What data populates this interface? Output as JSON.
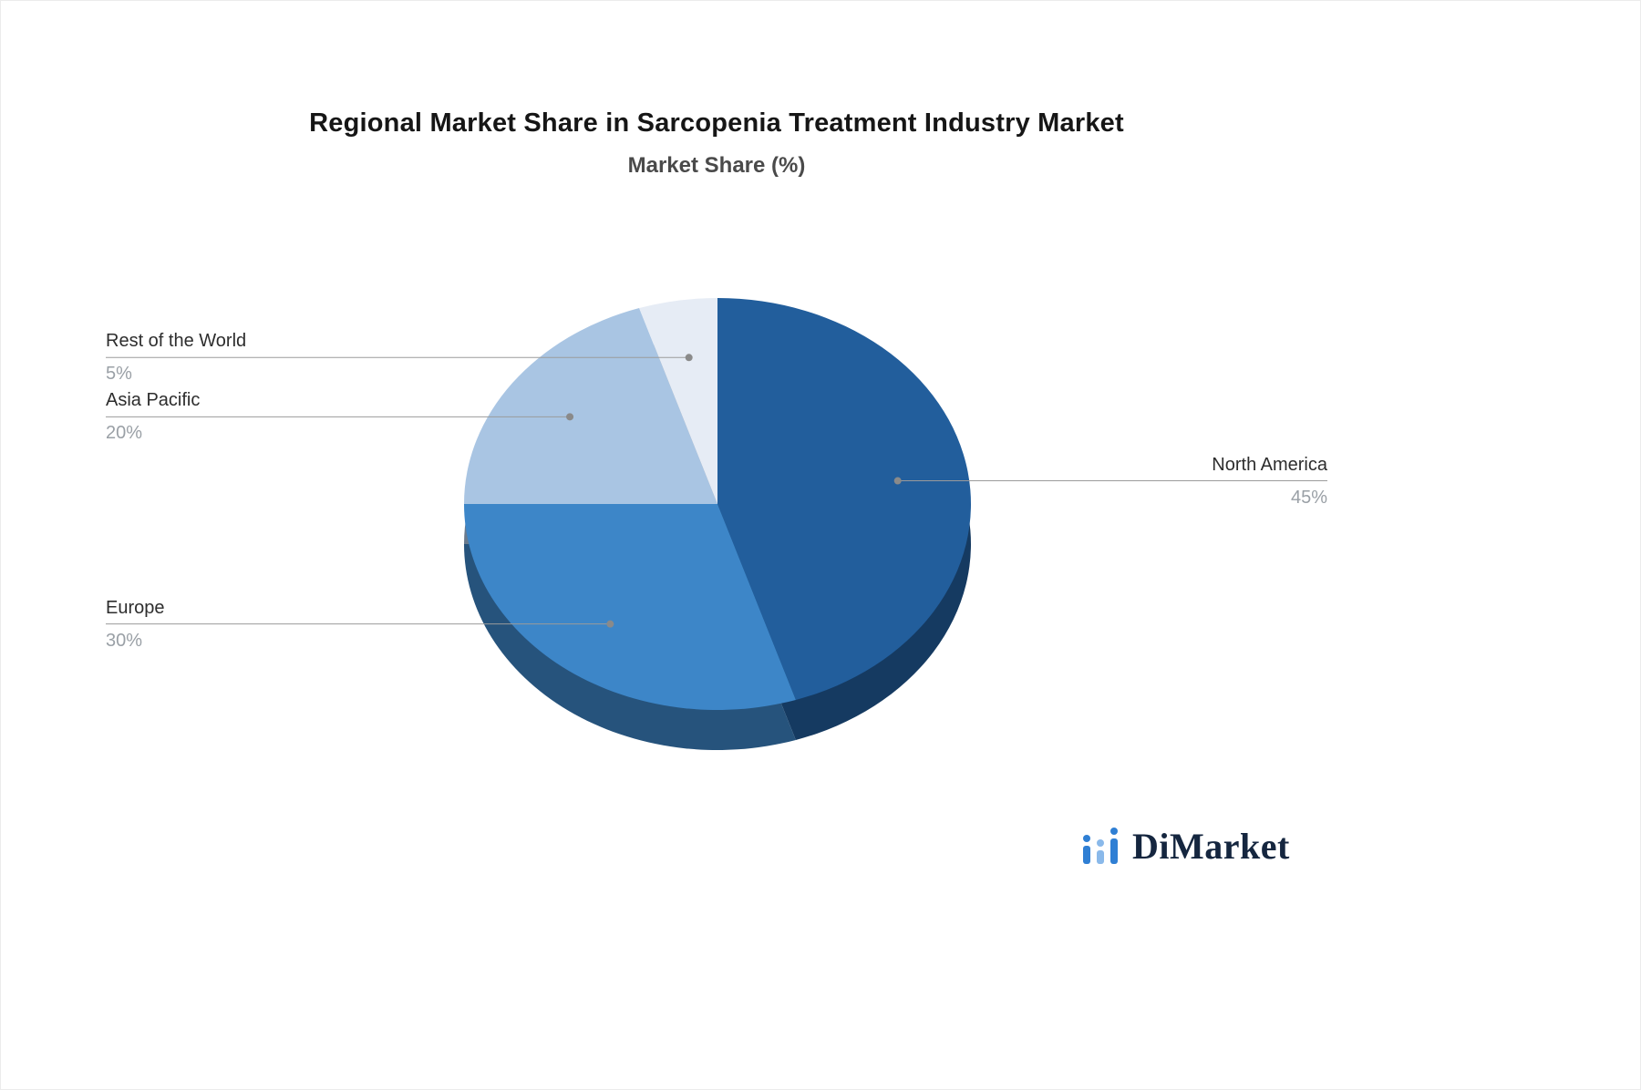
{
  "header": {
    "title": "Regional Market Share in Sarcopenia Treatment Industry Market",
    "subtitle": "Market Share (%)"
  },
  "brand": {
    "name": "DiMarket",
    "icon": "bar-chart-icon",
    "icon_color": "#2f7fd4",
    "icon_color_light": "#8ab9ea",
    "text_color": "#15263f"
  },
  "chart_data": {
    "type": "pie",
    "title": "Regional Market Share in Sarcopenia Treatment Industry Market",
    "subtitle": "Market Share (%)",
    "unit": "%",
    "labels": [
      "North America",
      "Europe",
      "Asia Pacific",
      "Rest of the World"
    ],
    "values": [
      45,
      30,
      20,
      5
    ],
    "value_labels": [
      "45%",
      "30%",
      "20%",
      "5%"
    ],
    "colors": [
      "#225e9c",
      "#3d86c8",
      "#a9c5e3",
      "#e6ecf5"
    ],
    "style": "3d-pie",
    "start_angle_deg": 0,
    "direction": "clockwise",
    "legend_position": "none",
    "label_style": "callout-lines-with-dots",
    "line_color": "#9b9b9b",
    "dot_color": "#8a8a8a"
  }
}
